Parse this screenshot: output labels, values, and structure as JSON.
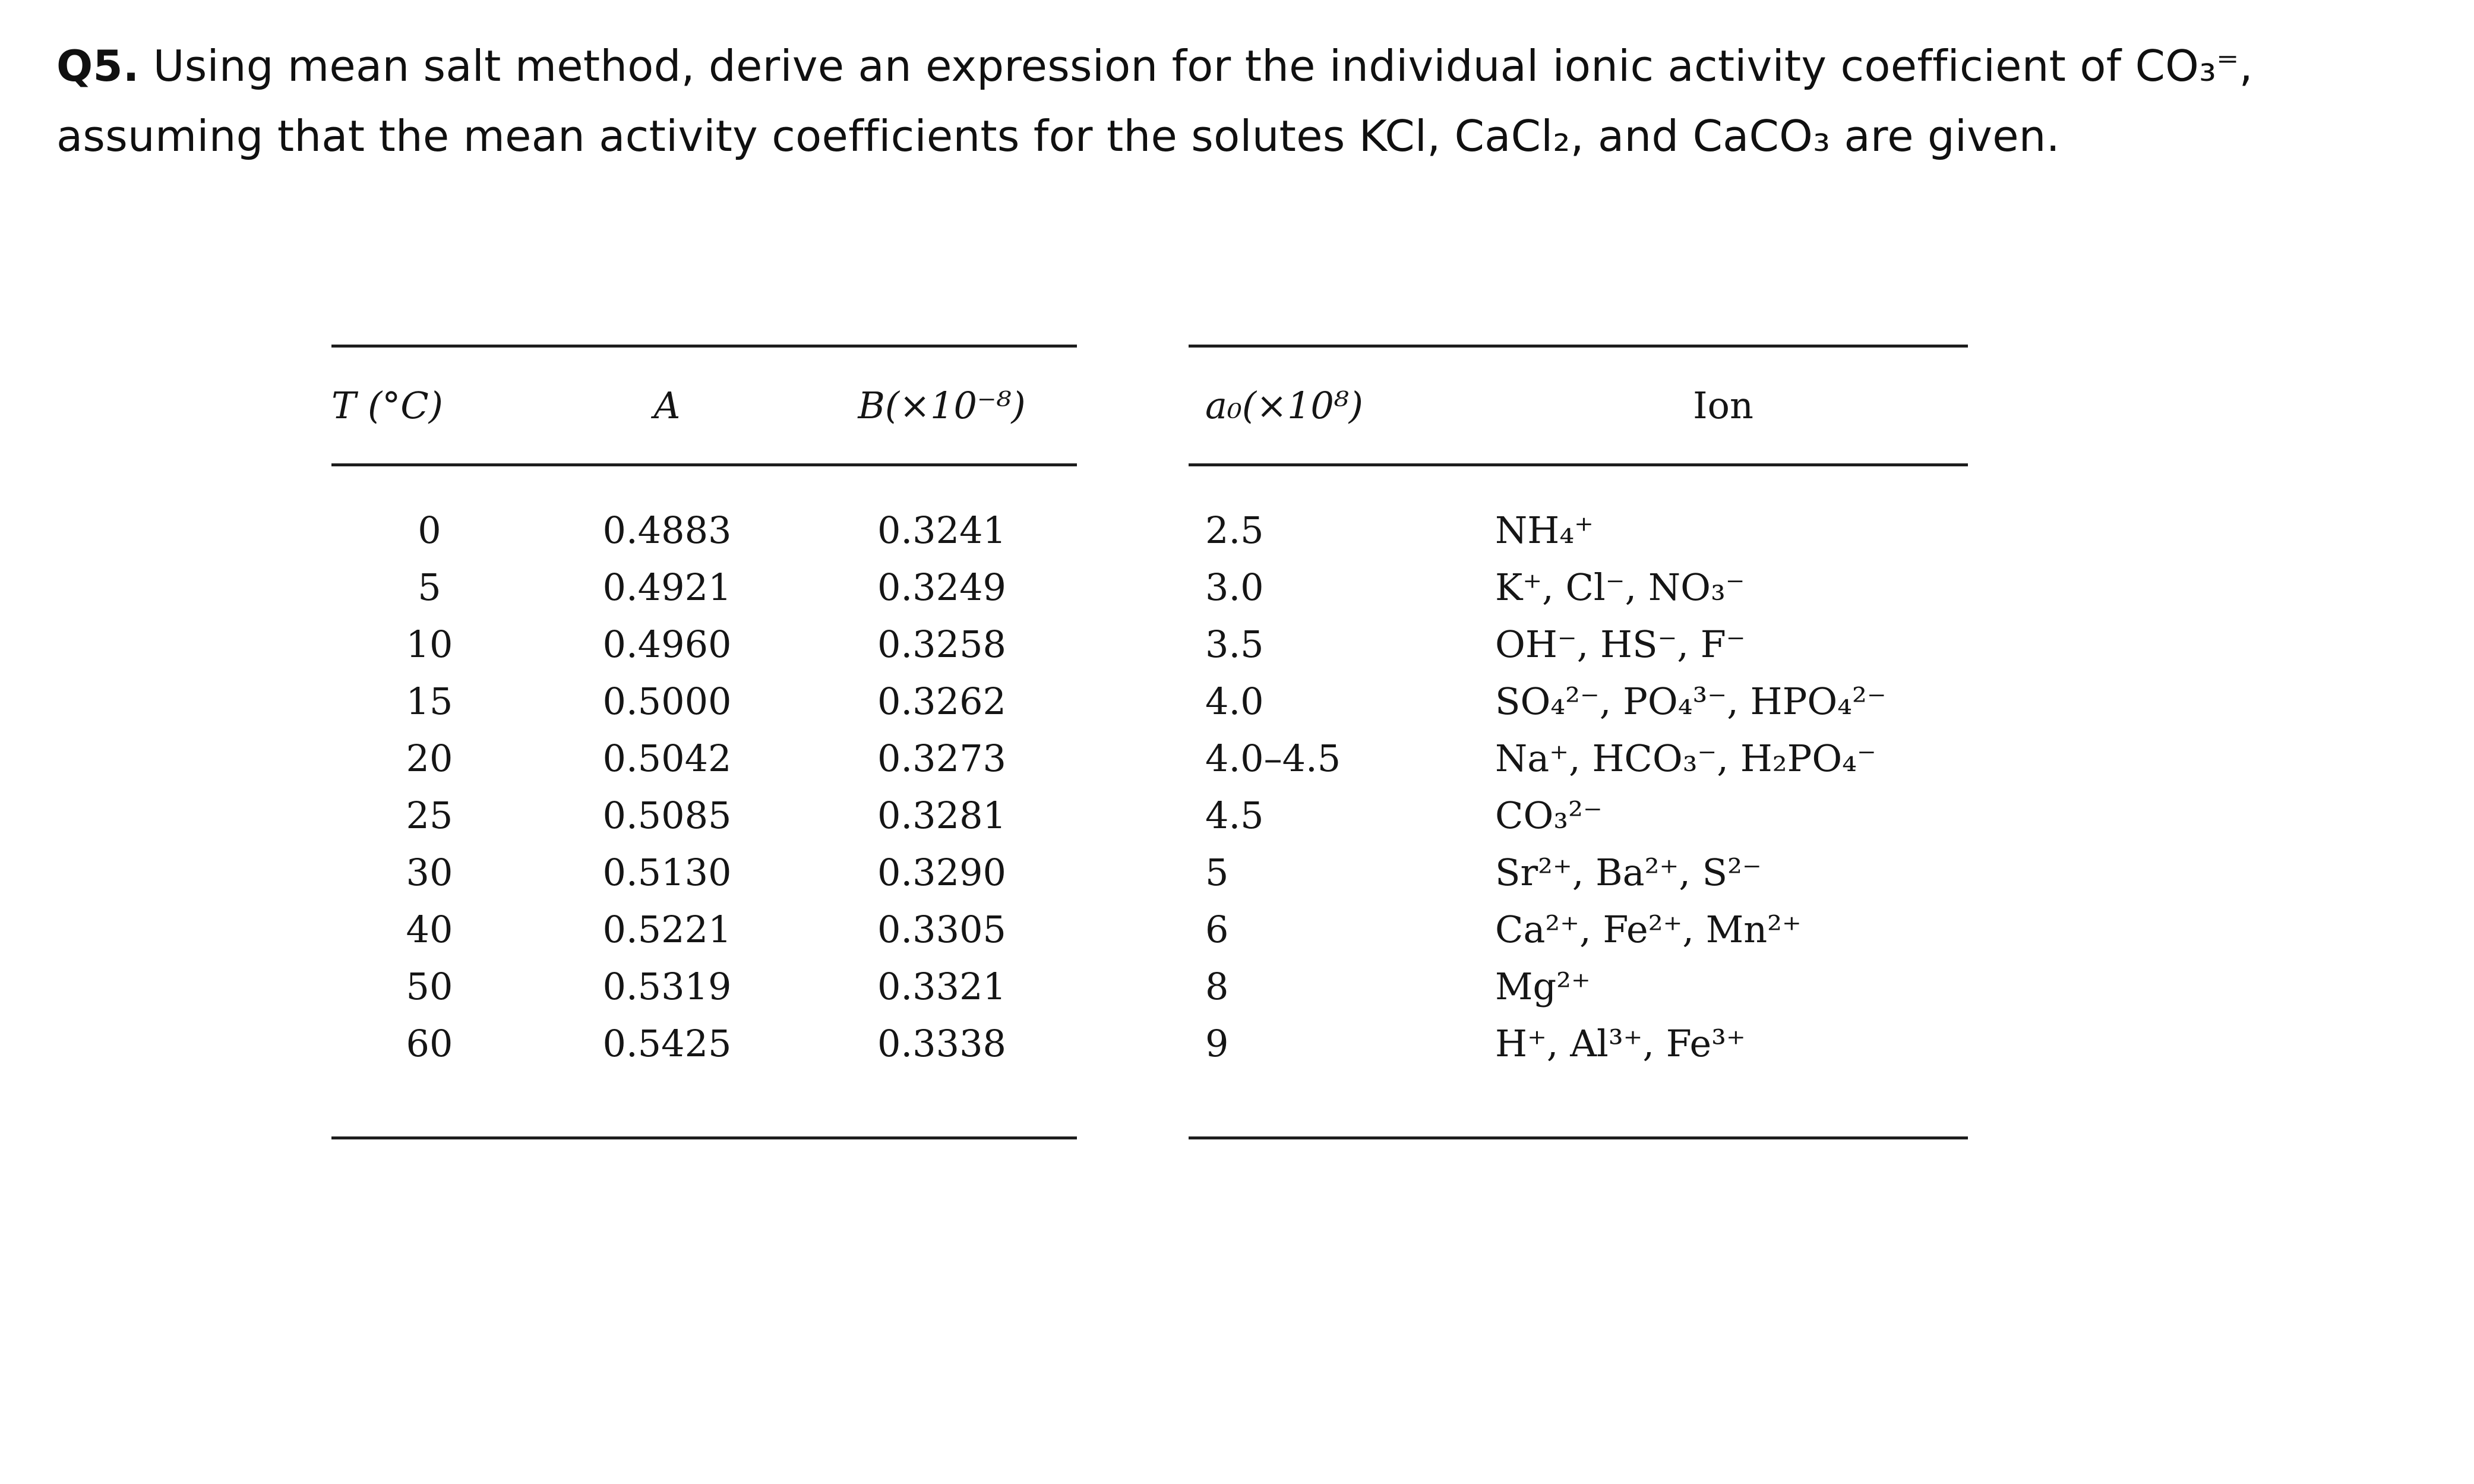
{
  "page": {
    "background": "#ffffff",
    "text_color": "#121212",
    "rule_color": "#1d1d1d"
  },
  "question": {
    "label": "Q5.",
    "text": "Using mean salt method, derive an expression for the individual ionic activity coefficient of CO₃⁼, assuming that the mean activity coefficients for the solutes KCl, CaCl₂, and CaCO₃ are given."
  },
  "left_table": {
    "headers": [
      "T (°C)",
      "A",
      "B(×10⁻⁸)"
    ],
    "rows": [
      [
        "0",
        "0.4883",
        "0.3241"
      ],
      [
        "5",
        "0.4921",
        "0.3249"
      ],
      [
        "10",
        "0.4960",
        "0.3258"
      ],
      [
        "15",
        "0.5000",
        "0.3262"
      ],
      [
        "20",
        "0.5042",
        "0.3273"
      ],
      [
        "25",
        "0.5085",
        "0.3281"
      ],
      [
        "30",
        "0.5130",
        "0.3290"
      ],
      [
        "40",
        "0.5221",
        "0.3305"
      ],
      [
        "50",
        "0.5319",
        "0.3321"
      ],
      [
        "60",
        "0.5425",
        "0.3338"
      ]
    ]
  },
  "right_table": {
    "headers": [
      "a₀(×10⁸)",
      "Ion"
    ],
    "rows": [
      [
        "2.5",
        "NH₄⁺"
      ],
      [
        "3.0",
        "K⁺, Cl⁻, NO₃⁻"
      ],
      [
        "3.5",
        "OH⁻, HS⁻, F⁻"
      ],
      [
        "4.0",
        "SO₄²⁻, PO₄³⁻, HPO₄²⁻"
      ],
      [
        "4.0–4.5",
        "Na⁺, HCO₃⁻, H₂PO₄⁻"
      ],
      [
        "4.5",
        "CO₃²⁻"
      ],
      [
        "5",
        "Sr²⁺, Ba²⁺, S²⁻"
      ],
      [
        "6",
        "Ca²⁺, Fe²⁺, Mn²⁺"
      ],
      [
        "8",
        "Mg²⁺"
      ],
      [
        "9",
        "H⁺, Al³⁺, Fe³⁺"
      ]
    ]
  }
}
